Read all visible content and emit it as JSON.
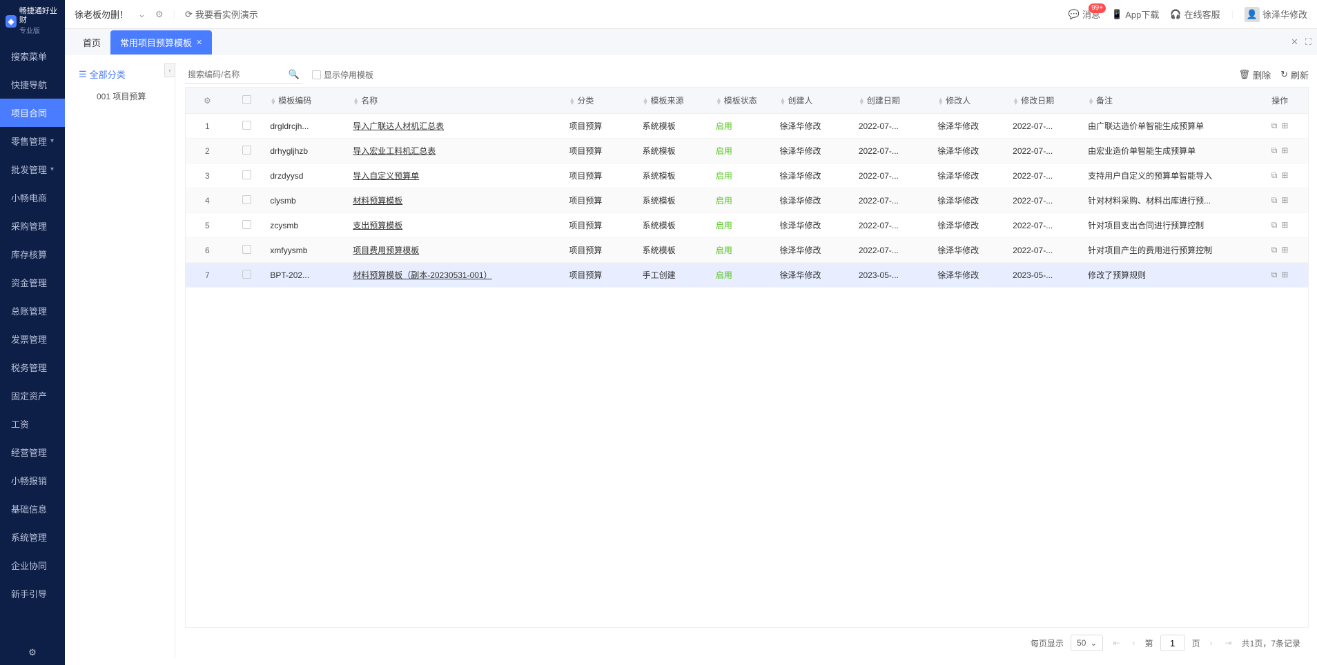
{
  "logo": {
    "name": "畅捷通好业财",
    "edition": "专业版"
  },
  "topbar": {
    "title": "徐老板勿删！",
    "demo": "我要看实例演示",
    "msg": "消息",
    "msg_badge": "99+",
    "app": "App下载",
    "service": "在线客服",
    "user": "徐泽华修改"
  },
  "sidebar": {
    "items": [
      {
        "label": "搜索菜单",
        "caret": false
      },
      {
        "label": "快捷导航",
        "caret": false
      },
      {
        "label": "项目合同",
        "caret": false,
        "active": true
      },
      {
        "label": "零售管理",
        "caret": true
      },
      {
        "label": "批发管理",
        "caret": true
      },
      {
        "label": "小畅电商",
        "caret": false
      },
      {
        "label": "采购管理",
        "caret": false
      },
      {
        "label": "库存核算",
        "caret": false
      },
      {
        "label": "资金管理",
        "caret": false
      },
      {
        "label": "总账管理",
        "caret": false
      },
      {
        "label": "发票管理",
        "caret": false
      },
      {
        "label": "税务管理",
        "caret": false
      },
      {
        "label": "固定资产",
        "caret": false
      },
      {
        "label": "工资",
        "caret": false
      },
      {
        "label": "经营管理",
        "caret": false
      },
      {
        "label": "小畅报销",
        "caret": false
      },
      {
        "label": "基础信息",
        "caret": false
      },
      {
        "label": "系统管理",
        "caret": false
      },
      {
        "label": "企业协同",
        "caret": false
      },
      {
        "label": "新手引导",
        "caret": false
      }
    ]
  },
  "tabs": {
    "home": "首页",
    "active": "常用项目预算模板"
  },
  "leftpanel": {
    "title": "全部分类",
    "item": "001 项目预算"
  },
  "toolbar": {
    "search_placeholder": "搜索编码/名称",
    "show_stopped": "显示停用模板",
    "delete": "删除",
    "refresh": "刷新"
  },
  "table": {
    "cols": {
      "code": "模板编码",
      "name": "名称",
      "cat": "分类",
      "src": "模板来源",
      "status": "模板状态",
      "creator": "创建人",
      "cdate": "创建日期",
      "mod": "修改人",
      "mdate": "修改日期",
      "remark": "备注",
      "ops": "操作"
    },
    "rows": [
      {
        "idx": "1",
        "code": "drgldrcjh...",
        "name": "导入广联达人材机汇总表",
        "cat": "项目预算",
        "src": "系统模板",
        "status": "启用",
        "creator": "徐泽华修改",
        "cdate": "2022-07-...",
        "mod": "徐泽华修改",
        "mdate": "2022-07-...",
        "remark": "由广联达造价单智能生成预算单"
      },
      {
        "idx": "2",
        "code": "drhygljhzb",
        "name": "导入宏业工料机汇总表",
        "cat": "项目预算",
        "src": "系统模板",
        "status": "启用",
        "creator": "徐泽华修改",
        "cdate": "2022-07-...",
        "mod": "徐泽华修改",
        "mdate": "2022-07-...",
        "remark": "由宏业造价单智能生成预算单"
      },
      {
        "idx": "3",
        "code": "drzdyysd",
        "name": "导入自定义预算单",
        "cat": "项目预算",
        "src": "系统模板",
        "status": "启用",
        "creator": "徐泽华修改",
        "cdate": "2022-07-...",
        "mod": "徐泽华修改",
        "mdate": "2022-07-...",
        "remark": "支持用户自定义的预算单智能导入"
      },
      {
        "idx": "4",
        "code": "clysmb",
        "name": "材料预算模板",
        "cat": "项目预算",
        "src": "系统模板",
        "status": "启用",
        "creator": "徐泽华修改",
        "cdate": "2022-07-...",
        "mod": "徐泽华修改",
        "mdate": "2022-07-...",
        "remark": "针对材料采购、材料出库进行预..."
      },
      {
        "idx": "5",
        "code": "zcysmb",
        "name": "支出预算模板",
        "cat": "项目预算",
        "src": "系统模板",
        "status": "启用",
        "creator": "徐泽华修改",
        "cdate": "2022-07-...",
        "mod": "徐泽华修改",
        "mdate": "2022-07-...",
        "remark": "针对项目支出合同进行预算控制"
      },
      {
        "idx": "6",
        "code": "xmfyysmb",
        "name": "项目费用预算模板",
        "cat": "项目预算",
        "src": "系统模板",
        "status": "启用",
        "creator": "徐泽华修改",
        "cdate": "2022-07-...",
        "mod": "徐泽华修改",
        "mdate": "2022-07-...",
        "remark": "针对项目产生的费用进行预算控制"
      },
      {
        "idx": "7",
        "code": "BPT-202...",
        "name": "材料预算模板（副本-20230531-001）",
        "cat": "项目预算",
        "src": "手工创建",
        "status": "启用",
        "creator": "徐泽华修改",
        "cdate": "2023-05-...",
        "mod": "徐泽华修改",
        "mdate": "2023-05-...",
        "remark": "修改了预算规则"
      }
    ]
  },
  "pagination": {
    "per_page_label": "每页显示",
    "per_page": "50",
    "page_label_pre": "第",
    "page": "1",
    "page_label_post": "页",
    "total": "共1页，7条记录"
  }
}
